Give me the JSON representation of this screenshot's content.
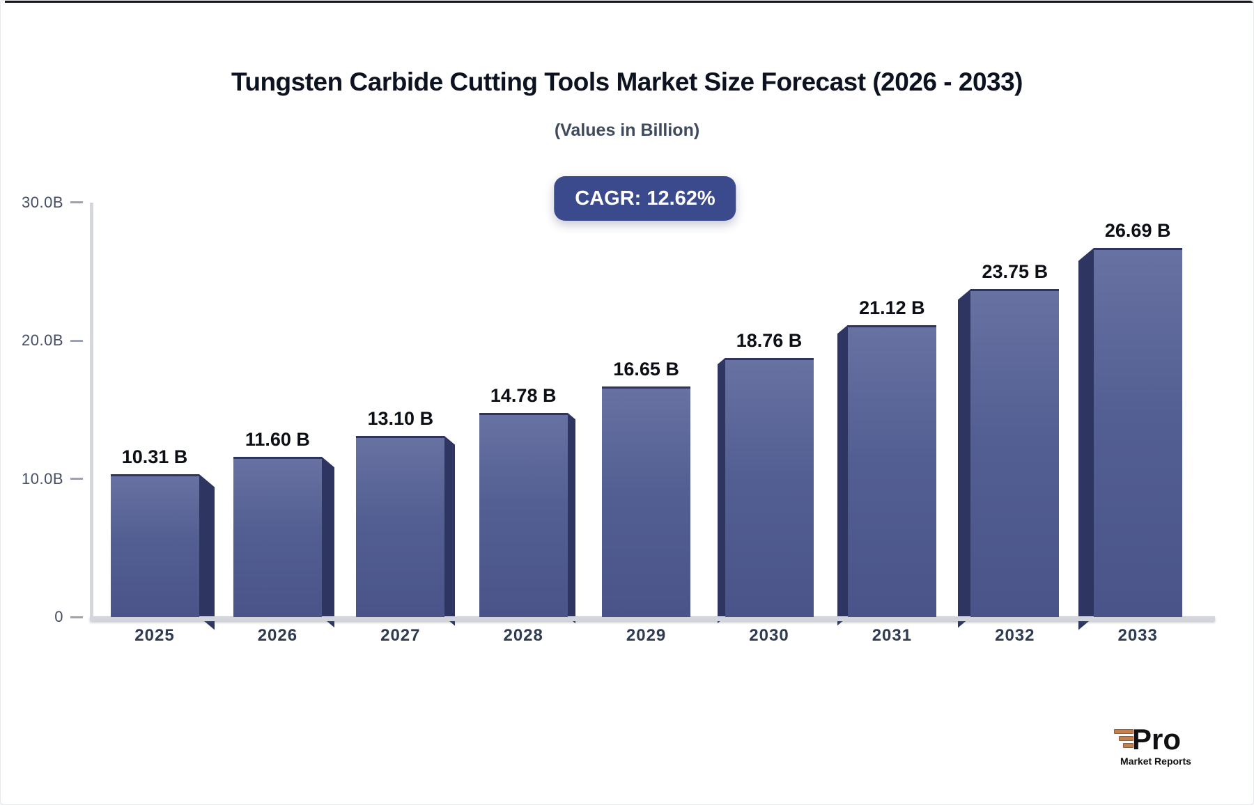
{
  "header": {
    "title": "Tungsten Carbide Cutting Tools Market Size Forecast (2026 - 2033)",
    "subtitle": "(Values in Billion)",
    "cagr_badge": "CAGR: 12.62%"
  },
  "chart_data": {
    "type": "bar",
    "title": "Tungsten Carbide Cutting Tools Market Size Forecast (2026 - 2033)",
    "subtitle": "(Values in Billion)",
    "annotation": "CAGR: 12.62%",
    "categories": [
      "2025",
      "2026",
      "2027",
      "2028",
      "2029",
      "2030",
      "2031",
      "2032",
      "2033"
    ],
    "values": [
      10.31,
      11.6,
      13.1,
      14.78,
      16.65,
      18.76,
      21.12,
      23.75,
      26.69
    ],
    "value_labels": [
      "10.31 B",
      "11.60 B",
      "13.10 B",
      "14.78 B",
      "16.65 B",
      "18.76 B",
      "21.12 B",
      "23.75 B",
      "26.69 B"
    ],
    "y_ticks": [
      {
        "label": "30.0B",
        "value": 30
      },
      {
        "label": "20.0B",
        "value": 20
      },
      {
        "label": "10.0B",
        "value": 10
      },
      {
        "label": "0",
        "value": 0
      }
    ],
    "ylim": [
      0,
      30
    ],
    "xlabel": "",
    "ylabel": "",
    "grid": false,
    "legend_position": "none",
    "colors": {
      "bar_front_top": "#6872a2",
      "bar_front_mid": "#535e92",
      "bar_front_bottom": "#4a5489",
      "bar_side": "#2d3560",
      "bar_top_edge": "#2c3461",
      "axis": "#d5d7de",
      "badge_bg": "#3b4a8d",
      "badge_text": "#ffffff"
    }
  },
  "logo": {
    "name": "Pro",
    "tagline": "Market Reports",
    "accent": "#c0804f",
    "accent_dark": "#9a5a33"
  }
}
